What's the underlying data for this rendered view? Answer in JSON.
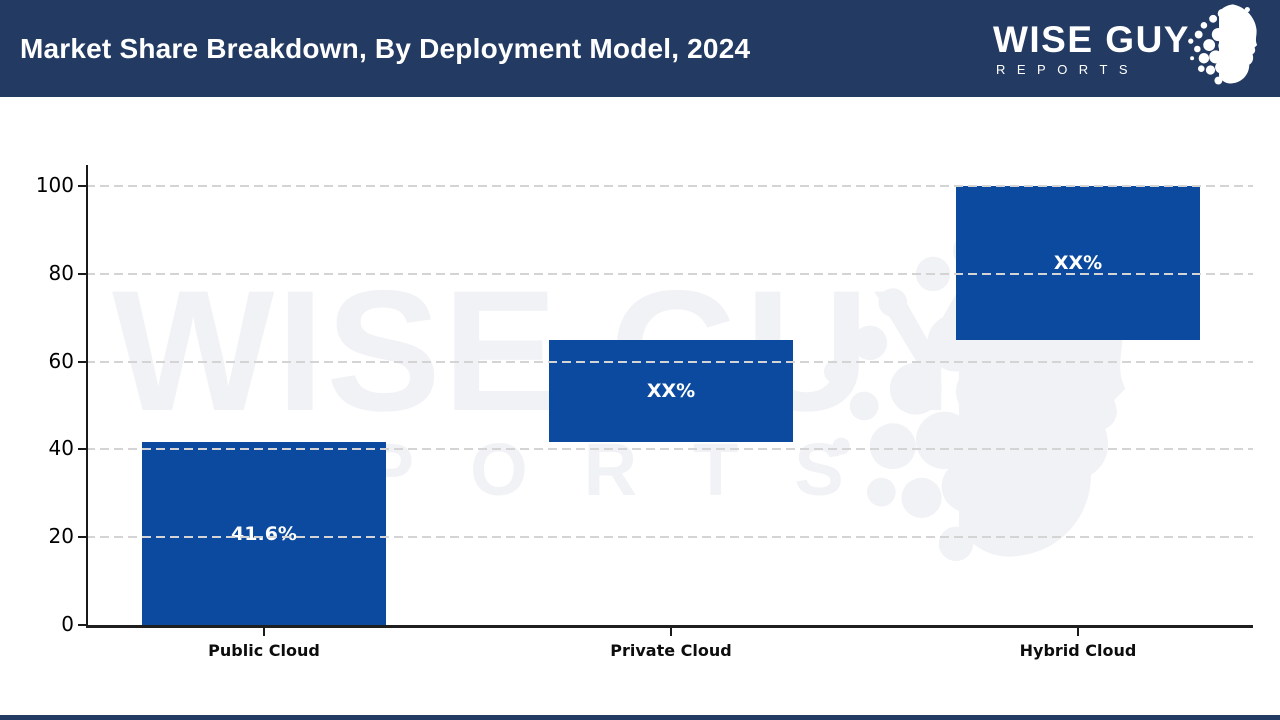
{
  "header": {
    "title": "Market Share Breakdown, By Deployment Model, 2024",
    "logo": {
      "line1": "WISE GUY",
      "line2": "REPORTS"
    }
  },
  "watermark": {
    "line1": "WISE GUY",
    "line2": "REPORTS"
  },
  "chart_data": {
    "type": "bar",
    "subtype": "floating-segment-percentage",
    "title": "Market Share Breakdown, By Deployment Model, 2024",
    "categories": [
      "Public Cloud",
      "Private Cloud",
      "Hybrid Cloud"
    ],
    "series": [
      {
        "name": "Market Share",
        "ranges": [
          [
            0,
            41.6
          ],
          [
            41.6,
            65
          ],
          [
            65,
            100
          ]
        ],
        "values": [
          41.6,
          23.4,
          35
        ],
        "labels": [
          "41.6%",
          "XX%",
          "XX%"
        ]
      }
    ],
    "xlabel": "",
    "ylabel": "",
    "ylim": [
      0,
      105
    ],
    "yticks": [
      "0",
      "20",
      "40",
      "60",
      "80",
      "100"
    ],
    "grid": "horizontal-dashed",
    "legend": "none",
    "bar_color": "#0B4A9F",
    "label_color": "#FFFFFF"
  },
  "colors": {
    "header_bg": "#233A63",
    "footer_bg": "#233A63",
    "bar": "#0B4A9F",
    "grid": "#D4D4D4",
    "axis": "#1A1A1A",
    "watermark": "#F1F2F5"
  }
}
